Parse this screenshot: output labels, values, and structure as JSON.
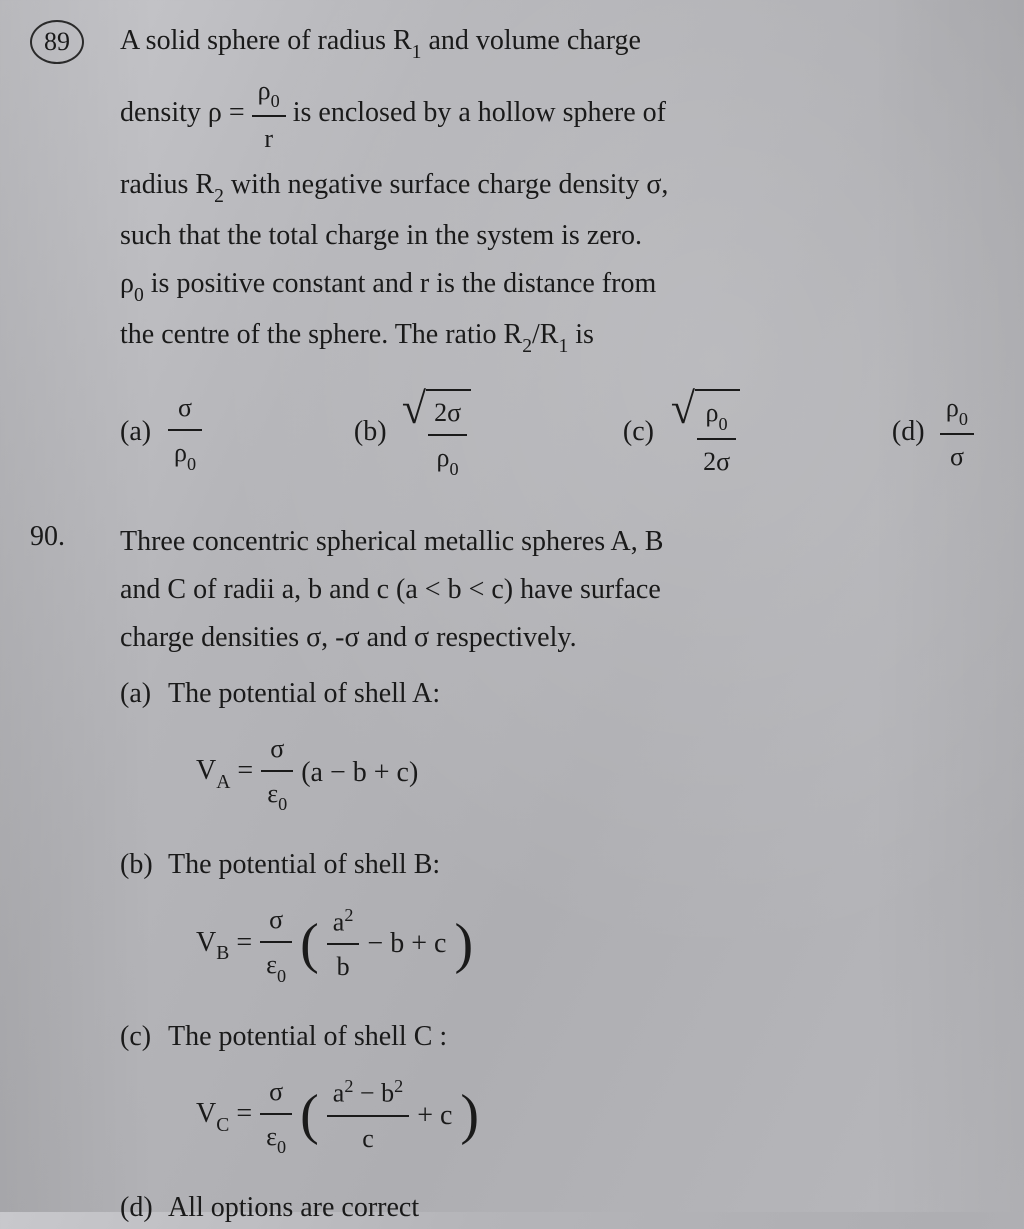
{
  "q89": {
    "number": "89",
    "circled": true,
    "text_lines": [
      "A solid sphere of radius R<sub>1</sub> and volume charge",
      "density ρ = <FRAC>ρ<sub>0</sub>|r</FRAC> is enclosed by a hollow sphere of",
      "radius R<sub>2</sub> with negative surface charge density σ,",
      "such that the total charge in the system is zero.",
      "ρ<sub>0</sub> is positive constant and r is the distance from",
      "the centre of the sphere. The ratio R<sub>2</sub>/R<sub>1</sub> is"
    ],
    "options": [
      {
        "label": "(a)",
        "type": "frac",
        "num": "σ",
        "den": "ρ<sub>0</sub>"
      },
      {
        "label": "(b)",
        "type": "sqrt-frac",
        "num": "2σ",
        "den": "ρ<sub>0</sub>"
      },
      {
        "label": "(c)",
        "type": "sqrt-frac",
        "num": "ρ<sub>0</sub>",
        "den": "2σ"
      },
      {
        "label": "(d)",
        "type": "frac",
        "num": "ρ<sub>0</sub>",
        "den": "σ"
      }
    ]
  },
  "q90": {
    "number": "90.",
    "circled": false,
    "text_lines": [
      "Three concentric spherical metallic spheres A, B",
      "and C of radii a, b and c (a < b < c) have surface",
      "charge densities σ, -σ and σ respectively."
    ],
    "options": [
      {
        "label": "(a)",
        "intro": "The potential of shell A:",
        "eq_left": "V<sub>A</sub> =",
        "eq_frac_num": "σ",
        "eq_frac_den": "ε<sub>0</sub>",
        "eq_right": "(a − b + c)",
        "big_paren": false
      },
      {
        "label": "(b)",
        "intro": "The potential of shell B:",
        "eq_left": "V<sub>B</sub> =",
        "eq_frac_num": "σ",
        "eq_frac_den": "ε<sub>0</sub>",
        "paren_inner_frac_num": "a<sup>2</sup>",
        "paren_inner_frac_den": "b",
        "paren_inner_tail": "− b + c",
        "big_paren": true
      },
      {
        "label": "(c)",
        "intro": "The potential of shell C :",
        "eq_left": "V<sub>C</sub> =",
        "eq_frac_num": "σ",
        "eq_frac_den": "ε<sub>0</sub>",
        "paren_inner_frac_num": "a<sup>2</sup> − b<sup>2</sup>",
        "paren_inner_frac_den": "c",
        "paren_inner_tail": "+ c",
        "big_paren": true
      },
      {
        "label": "(d)",
        "intro": "All options are correct",
        "eq_left": null
      }
    ]
  }
}
